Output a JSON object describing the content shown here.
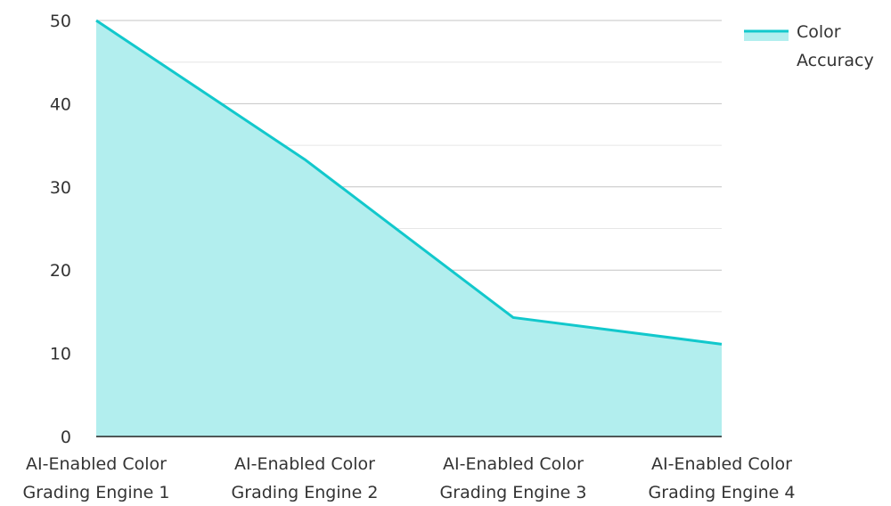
{
  "chart_data": {
    "type": "area",
    "title": "",
    "xlabel": "",
    "ylabel": "",
    "categories": [
      [
        "AI-Enabled Color",
        "Grading Engine 1"
      ],
      [
        "AI-Enabled Color",
        "Grading Engine 2"
      ],
      [
        "AI-Enabled Color",
        "Grading Engine 3"
      ],
      [
        "AI-Enabled Color",
        "Grading Engine 4"
      ]
    ],
    "series": [
      {
        "name": "Color Accuracy",
        "values": [
          50,
          33.3,
          14.3,
          11.1
        ]
      }
    ],
    "ylim": [
      0,
      50
    ],
    "yticks": [
      0,
      10,
      20,
      30,
      40,
      50
    ],
    "grid": true,
    "legend": {
      "position": "top-right",
      "lines": [
        "Color",
        "Accuracy"
      ]
    },
    "colors": {
      "line": "#12c8cc",
      "fill": "#b2eeee",
      "grid": "#cccccc",
      "axis": "#222222",
      "text": "#333333"
    }
  }
}
